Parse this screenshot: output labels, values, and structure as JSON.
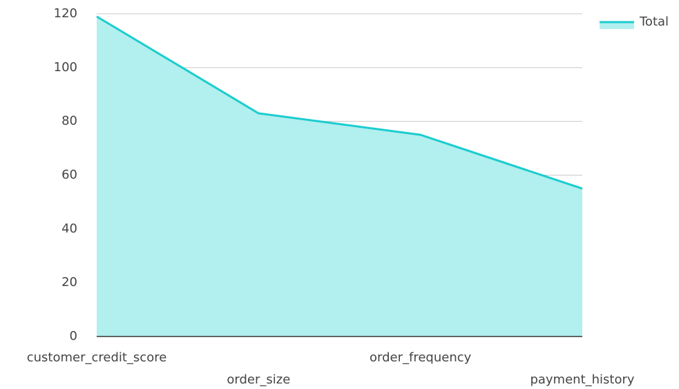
{
  "chart_data": {
    "type": "area",
    "categories": [
      "customer_credit_score",
      "order_size",
      "order_frequency",
      "payment_history"
    ],
    "series": [
      {
        "name": "Total",
        "color": "#1ccccf",
        "fill": "#b2efef",
        "values": [
          119,
          83,
          75,
          55
        ]
      }
    ],
    "ylim": [
      0,
      120
    ],
    "yticks": [
      0,
      20,
      40,
      60,
      80,
      100,
      120
    ],
    "grid": true,
    "legend": "top-right"
  }
}
